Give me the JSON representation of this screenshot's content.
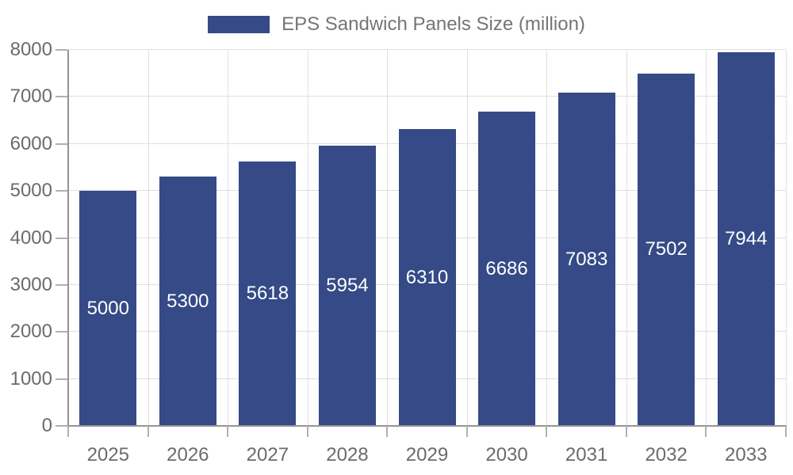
{
  "legend": {
    "label": "EPS Sandwich Panels Size (million)"
  },
  "chart_data": {
    "type": "bar",
    "title": "EPS Sandwich Panels Size (million)",
    "series_name": "EPS Sandwich Panels Size (million)",
    "categories": [
      "2025",
      "2026",
      "2027",
      "2028",
      "2029",
      "2030",
      "2031",
      "2032",
      "2033"
    ],
    "values": [
      5000,
      5300,
      5618,
      5954,
      6310,
      6686,
      7083,
      7502,
      7944
    ],
    "xlabel": "",
    "ylabel": "",
    "ylim": [
      0,
      8000
    ],
    "ytick_step": 1000,
    "ytick_labels": [
      "0",
      "1000",
      "2000",
      "3000",
      "4000",
      "5000",
      "6000",
      "7000",
      "8000"
    ],
    "grid": true,
    "legend_position": "top",
    "bar_color": "#354a86",
    "value_label_color": "#ffffff",
    "tick_label_color": "#6b6b6b",
    "legend_text_color": "#757575",
    "grid_color": "#e0e0e0",
    "axis_color": "#949494",
    "tick_mark_color": "#b0b0b0",
    "background_color": "#ffffff"
  }
}
